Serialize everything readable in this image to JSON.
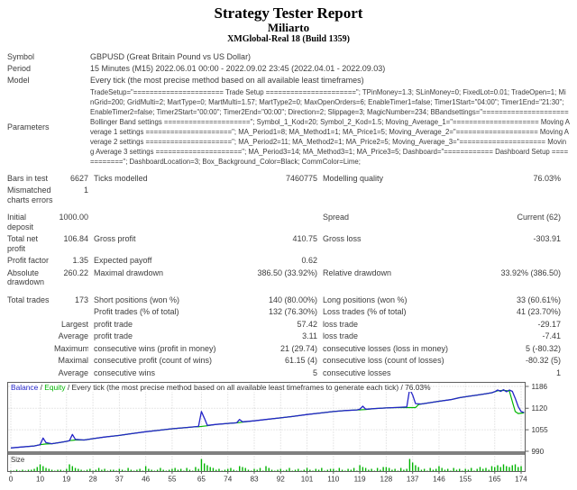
{
  "header": {
    "title": "Strategy Tester Report",
    "expert": "Miliarto",
    "server": "XMGlobal-Real 18 (Build 1359)"
  },
  "info": [
    {
      "label": "Symbol",
      "value": "GBPUSD (Great Britain Pound vs US Dollar)"
    },
    {
      "label": "Period",
      "value": "15 Minutes (M15) 2022.06.01 00:00 - 2022.09.02 23:45 (2022.04.01 - 2022.09.03)"
    },
    {
      "label": "Model",
      "value": "Every tick (the most precise method based on all available least timeframes)"
    },
    {
      "label": "Parameters",
      "small": true,
      "value": "TradeSetup=\"====================== Trade Setup ======================\"; TPinMoney=1.3; SLinMoney=0; FixedLot=0.01; TradeOpen=1; MinGrid=200; GridMulti=2; MartType=0; MartMulti=1.57; MartType2=0; MaxOpenOrders=6; EnableTimer1=false; Timer1Start=\"04:00\"; Timer1End=\"21:30\"; EnableTimer2=false; Timer2Start=\"00:00\"; Timer2End=\"00:00\"; Direction=2; Slippage=3; MagicNumber=234; BBandsettings=\"===================== Bollinger Band settings =====================\"; Symbol_1_Kod=20; Symbol_2_Kod=1.5; Moving_Average_1=\"===================== Moving Average 1 settings =====================\"; MA_Period1=8; MA_Method1=1; MA_Price1=5; Moving_Average_2=\"==================== Moving Average 2 settings =====================\"; MA_Period2=11; MA_Method2=1; MA_Price2=5; Moving_Average_3=\"===================== Moving Average 3 settings =====================\"; MA_Period3=14; MA_Method3=1; MA_Price3=5; Dashboard=\"============ Dashboard Setup ============\"; DashboardLocation=3; Box_Background_Color=Black; CommColor=Lime;"
    }
  ],
  "stats": [
    {
      "cells": [
        "Bars in test",
        "6627",
        "Ticks modelled",
        "7460775",
        "Modelling quality",
        "76.03%"
      ]
    },
    {
      "cells": [
        "Mismatched charts errors",
        "1",
        "",
        "",
        "",
        ""
      ]
    },
    {
      "gap": true
    },
    {
      "cells": [
        "Initial deposit",
        "1000.00",
        "",
        "",
        "Spread",
        "Current (62)"
      ]
    },
    {
      "cells": [
        "Total net profit",
        "106.84",
        "Gross profit",
        "410.75",
        "Gross loss",
        "-303.91"
      ]
    },
    {
      "cells": [
        "Profit factor",
        "1.35",
        "Expected payoff",
        "0.62",
        "",
        ""
      ]
    },
    {
      "cells": [
        "Absolute drawdown",
        "260.22",
        "Maximal drawdown",
        "386.50 (33.92%)",
        "Relative drawdown",
        "33.92% (386.50)"
      ]
    },
    {
      "gap": true
    },
    {
      "cells": [
        "Total trades",
        "173",
        "Short positions (won %)",
        "140 (80.00%)",
        "Long positions (won %)",
        "33 (60.61%)"
      ]
    },
    {
      "cells": [
        "",
        "",
        "Profit trades (% of total)",
        "132 (76.30%)",
        "Loss trades (% of total)",
        "41 (23.70%)"
      ]
    },
    {
      "cells": [
        "",
        "Largest",
        "profit trade",
        "57.42",
        "loss trade",
        "-29.17"
      ]
    },
    {
      "cells": [
        "",
        "Average",
        "profit trade",
        "3.11",
        "loss trade",
        "-7.41"
      ]
    },
    {
      "cells": [
        "",
        "Maximum",
        "consecutive wins (profit in money)",
        "21 (29.74)",
        "consecutive losses (loss in money)",
        "5 (-80.32)"
      ]
    },
    {
      "cells": [
        "",
        "Maximal",
        "consecutive profit (count of wins)",
        "61.15 (4)",
        "consecutive loss (count of losses)",
        "-80.32 (5)"
      ]
    },
    {
      "cells": [
        "",
        "Average",
        "consecutive wins",
        "5",
        "consecutive losses",
        "1"
      ]
    }
  ],
  "chart_data": {
    "type": "line",
    "legend": {
      "balance_label": "Balance",
      "equity_label": "Equity",
      "suffix": " / Every tick (the most precise method based on all available least timeframes to generate each tick) / 76.03%",
      "separator": " / "
    },
    "size_label": "Size",
    "x_ticks": [
      0,
      10,
      19,
      28,
      37,
      46,
      55,
      65,
      74,
      83,
      92,
      101,
      110,
      119,
      128,
      137,
      146,
      155,
      165,
      174
    ],
    "y_ticks": [
      1186,
      1120,
      1055,
      990
    ],
    "y_gridlines": [
      1186,
      1120,
      1055
    ],
    "x_range": [
      0,
      175.5
    ],
    "colors": {
      "balance": "#2424c8",
      "equity": "#00b400",
      "grid": "#cfcfcf",
      "frame": "#606060",
      "separator": "#808080",
      "size_bar": "#00b400",
      "text": "#333333"
    },
    "series": [
      {
        "name": "Balance",
        "points": [
          [
            0,
            1000
          ],
          [
            4,
            1003
          ],
          [
            8,
            1006
          ],
          [
            10,
            1010
          ],
          [
            11,
            1030
          ],
          [
            12,
            1016
          ],
          [
            14,
            1013
          ],
          [
            17,
            1017
          ],
          [
            19,
            1020
          ],
          [
            20,
            1022
          ],
          [
            21,
            1041
          ],
          [
            22,
            1026
          ],
          [
            25,
            1024
          ],
          [
            28,
            1028
          ],
          [
            32,
            1033
          ],
          [
            37,
            1038
          ],
          [
            41,
            1043
          ],
          [
            46,
            1049
          ],
          [
            50,
            1053
          ],
          [
            55,
            1058
          ],
          [
            60,
            1062
          ],
          [
            64,
            1065
          ],
          [
            65,
            1110
          ],
          [
            66,
            1090
          ],
          [
            67,
            1068
          ],
          [
            70,
            1071
          ],
          [
            74,
            1074
          ],
          [
            77,
            1076
          ],
          [
            78,
            1086
          ],
          [
            79,
            1079
          ],
          [
            83,
            1082
          ],
          [
            87,
            1086
          ],
          [
            92,
            1091
          ],
          [
            96,
            1095
          ],
          [
            101,
            1101
          ],
          [
            106,
            1106
          ],
          [
            110,
            1110
          ],
          [
            114,
            1113
          ],
          [
            118,
            1115
          ],
          [
            119,
            1117
          ],
          [
            120,
            1126
          ],
          [
            121,
            1117
          ],
          [
            124,
            1119
          ],
          [
            128,
            1121
          ],
          [
            131,
            1122
          ],
          [
            135,
            1124
          ],
          [
            136,
            1178
          ],
          [
            137,
            1160
          ],
          [
            138,
            1134
          ],
          [
            140,
            1133
          ],
          [
            143,
            1137
          ],
          [
            146,
            1141
          ],
          [
            150,
            1146
          ],
          [
            153,
            1152
          ],
          [
            156,
            1156
          ],
          [
            159,
            1160
          ],
          [
            162,
            1164
          ],
          [
            164,
            1167
          ],
          [
            165,
            1170
          ],
          [
            166,
            1175
          ],
          [
            167,
            1171
          ],
          [
            168,
            1176
          ],
          [
            169,
            1170
          ],
          [
            170,
            1175
          ],
          [
            171,
            1171
          ],
          [
            172,
            1150
          ],
          [
            173,
            1125
          ],
          [
            174,
            1110
          ],
          [
            175,
            1107
          ]
        ]
      },
      {
        "name": "Equity",
        "points": [
          [
            0,
            1000
          ],
          [
            4,
            1003
          ],
          [
            8,
            1006
          ],
          [
            10,
            1010
          ],
          [
            12,
            1012
          ],
          [
            14,
            1013
          ],
          [
            17,
            1017
          ],
          [
            19,
            1020
          ],
          [
            20,
            1022
          ],
          [
            22,
            1024
          ],
          [
            25,
            1024
          ],
          [
            28,
            1028
          ],
          [
            32,
            1033
          ],
          [
            37,
            1038
          ],
          [
            41,
            1043
          ],
          [
            46,
            1049
          ],
          [
            50,
            1053
          ],
          [
            55,
            1058
          ],
          [
            60,
            1062
          ],
          [
            63,
            1064
          ],
          [
            64,
            1064
          ],
          [
            67,
            1067
          ],
          [
            70,
            1071
          ],
          [
            74,
            1074
          ],
          [
            77,
            1076
          ],
          [
            79,
            1078
          ],
          [
            83,
            1082
          ],
          [
            87,
            1086
          ],
          [
            92,
            1091
          ],
          [
            96,
            1095
          ],
          [
            101,
            1101
          ],
          [
            106,
            1106
          ],
          [
            110,
            1110
          ],
          [
            114,
            1113
          ],
          [
            118,
            1115
          ],
          [
            121,
            1116
          ],
          [
            124,
            1119
          ],
          [
            128,
            1121
          ],
          [
            131,
            1122
          ],
          [
            138,
            1122
          ],
          [
            139,
            1131
          ],
          [
            140,
            1133
          ],
          [
            143,
            1137
          ],
          [
            146,
            1141
          ],
          [
            150,
            1146
          ],
          [
            153,
            1152
          ],
          [
            156,
            1156
          ],
          [
            159,
            1160
          ],
          [
            162,
            1164
          ],
          [
            164,
            1167
          ],
          [
            165,
            1170
          ],
          [
            166,
            1173
          ],
          [
            168,
            1174
          ],
          [
            170,
            1172
          ],
          [
            171,
            1140
          ],
          [
            172,
            1110
          ],
          [
            173,
            1104
          ],
          [
            175,
            1106
          ]
        ]
      }
    ],
    "size_values": [
      1,
      1,
      2,
      1,
      2,
      1,
      2,
      2,
      3,
      5,
      8,
      6,
      4,
      3,
      2,
      1,
      2,
      2,
      1,
      3,
      8,
      6,
      4,
      3,
      2,
      1,
      2,
      3,
      1,
      2,
      4,
      2,
      3,
      1,
      2,
      2,
      1,
      3,
      2,
      1,
      4,
      2,
      1,
      2,
      3,
      1,
      6,
      3,
      2,
      1,
      2,
      4,
      2,
      1,
      2,
      3,
      4,
      2,
      3,
      1,
      4,
      2,
      1,
      5,
      3,
      14,
      9,
      7,
      5,
      4,
      2,
      3,
      1,
      2,
      3,
      4,
      2,
      1,
      6,
      5,
      4,
      2,
      1,
      3,
      2,
      4,
      1,
      6,
      4,
      2,
      1,
      2,
      3,
      1,
      2,
      4,
      1,
      2,
      3,
      1,
      2,
      4,
      2,
      1,
      3,
      2,
      4,
      1,
      2,
      3,
      3,
      1,
      4,
      2,
      1,
      3,
      2,
      4,
      1,
      7,
      5,
      4,
      2,
      3,
      1,
      4,
      2,
      5,
      5,
      4,
      2,
      3,
      1,
      4,
      2,
      3,
      14,
      10,
      7,
      5,
      2,
      3,
      1,
      4,
      2,
      3,
      6,
      4,
      2,
      3,
      1,
      4,
      2,
      3,
      1,
      3,
      2,
      4,
      1,
      3,
      5,
      3,
      4,
      2,
      6,
      5,
      7,
      5,
      8,
      6,
      5,
      7,
      8,
      5,
      6
    ]
  }
}
